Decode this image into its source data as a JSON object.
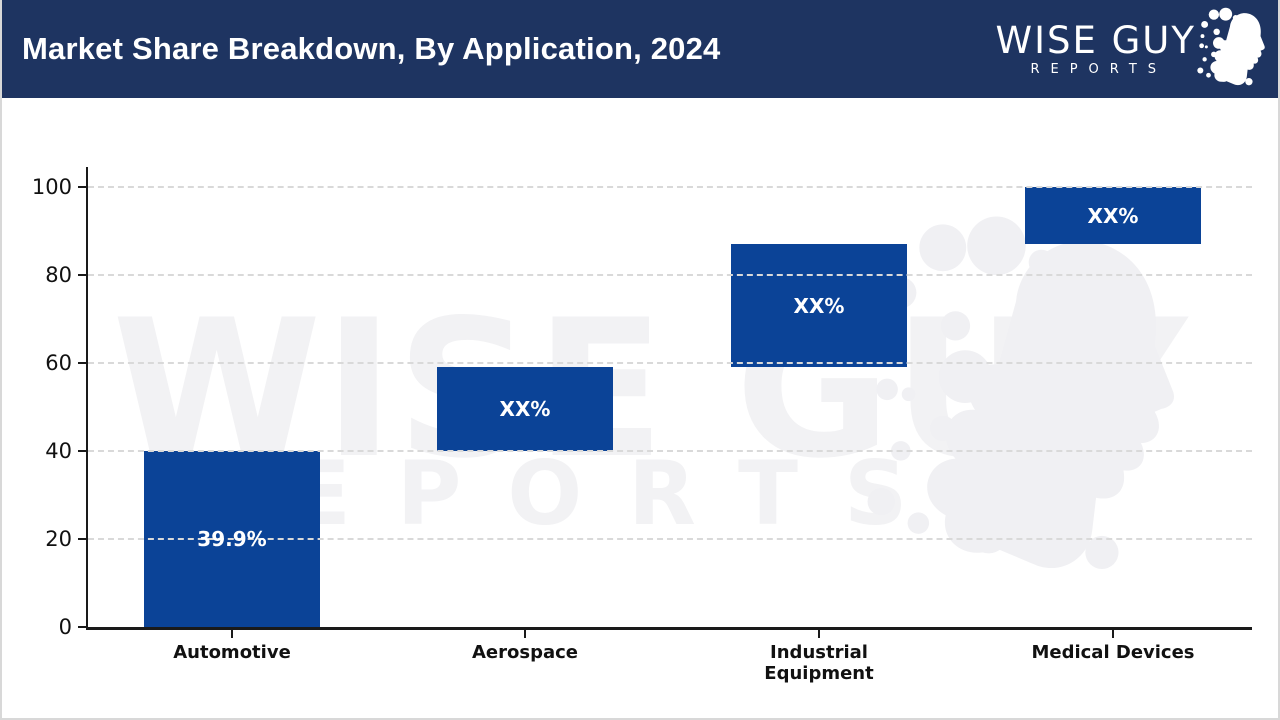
{
  "header": {
    "title": "Market Share Breakdown, By Application, 2024",
    "logo": {
      "wordmark": "WISE GUY",
      "subtext": "REPORTS"
    }
  },
  "watermark": {
    "wordmark": "WISE GUY",
    "subtext": "REPORTS"
  },
  "colors": {
    "header_bg": "#1e3461",
    "bar": "#0b4397",
    "gridline": "#d9d9d9",
    "axis": "#1a1a1a",
    "bar_label_text": "#ffffff",
    "watermark": "#f2f2f4"
  },
  "chart_data": {
    "type": "bar",
    "subtype": "waterfall",
    "title": "Market Share Breakdown, By Application, 2024",
    "categories": [
      "Automotive",
      "Aerospace",
      "Industrial Equipment",
      "Medical Devices"
    ],
    "xtick_labels": [
      "Automotive",
      "Aerospace",
      "Industrial\nEquipment",
      "Medical Devices"
    ],
    "segments": [
      {
        "category": "Automotive",
        "start": 0,
        "end": 39.9,
        "label": "39.9%"
      },
      {
        "category": "Aerospace",
        "start": 39.9,
        "end": 59,
        "label": "XX%"
      },
      {
        "category": "Industrial Equipment",
        "start": 59,
        "end": 87,
        "label": "XX%"
      },
      {
        "category": "Medical Devices",
        "start": 87,
        "end": 100,
        "label": "XX%"
      }
    ],
    "xlabel": "",
    "ylabel": "",
    "yticks": [
      0,
      20,
      40,
      60,
      80,
      100
    ],
    "ylim": [
      0,
      104.5
    ],
    "grid": "horizontal-dashed-above-bars",
    "legend": "none"
  }
}
